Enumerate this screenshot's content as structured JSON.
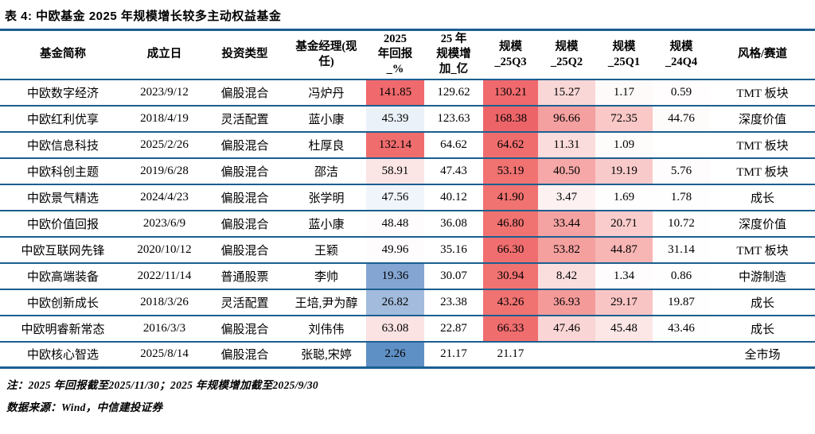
{
  "title": "表 4: 中欧基金 2025 年规模增长较多主动权益基金",
  "colors": {
    "rule_line": "#1B5F90",
    "heat_red_max": "#F0696C",
    "heat_blue_max": "#5E90C5",
    "background": "#FFFFFF"
  },
  "table": {
    "columns": [
      {
        "id": "fund-name",
        "label": "基金简称"
      },
      {
        "id": "inception-date",
        "label": "成立日"
      },
      {
        "id": "investment-type",
        "label": "投资类型"
      },
      {
        "id": "fund-manager",
        "label": "基金经理(现\n任)"
      },
      {
        "id": "return-2025-pct",
        "label": "2025\n年回报\n_%"
      },
      {
        "id": "scale-increase-25",
        "label": "25 年\n规模增\n加_亿"
      },
      {
        "id": "scale-25q3",
        "label": "规模\n_25Q3"
      },
      {
        "id": "scale-25q2",
        "label": "规模\n_25Q2"
      },
      {
        "id": "scale-25q1",
        "label": "规模\n_25Q1"
      },
      {
        "id": "scale-24q4",
        "label": "规模\n_24Q4"
      },
      {
        "id": "style-track",
        "label": "风格/赛道"
      }
    ],
    "rows": [
      {
        "cells": [
          {
            "t": "中欧数字经济"
          },
          {
            "t": "2023/9/12"
          },
          {
            "t": "偏股混合"
          },
          {
            "t": "冯炉丹"
          },
          {
            "t": "141.85",
            "bg": "#F0696C"
          },
          {
            "t": "129.62"
          },
          {
            "t": "130.21",
            "bg": "#F0696C"
          },
          {
            "t": "15.27",
            "bg": "#FAD7D7"
          },
          {
            "t": "1.17",
            "bg": "#FEFAFA"
          },
          {
            "t": "0.59",
            "bg": "#FFFDFD"
          },
          {
            "t": "TMT 板块"
          }
        ]
      },
      {
        "cells": [
          {
            "t": "中欧红利优享"
          },
          {
            "t": "2018/4/19"
          },
          {
            "t": "灵活配置"
          },
          {
            "t": "蓝小康"
          },
          {
            "t": "45.39",
            "bg": "#EBF1F9"
          },
          {
            "t": "123.63"
          },
          {
            "t": "168.38",
            "bg": "#ED6468"
          },
          {
            "t": "96.66",
            "bg": "#F5A0A0"
          },
          {
            "t": "72.35",
            "bg": "#F9C8C7"
          },
          {
            "t": "44.76",
            "bg": "#FEFBFB"
          },
          {
            "t": "深度价值"
          }
        ]
      },
      {
        "cells": [
          {
            "t": "中欧信息科技"
          },
          {
            "t": "2025/2/26"
          },
          {
            "t": "偏股混合"
          },
          {
            "t": "杜厚良"
          },
          {
            "t": "132.14",
            "bg": "#F06D6E"
          },
          {
            "t": "64.62"
          },
          {
            "t": "64.62",
            "bg": "#F06D6E"
          },
          {
            "t": "11.31",
            "bg": "#FBDCDC"
          },
          {
            "t": "1.09",
            "bg": "#FEFBFB"
          },
          {
            "t": ""
          },
          {
            "t": "TMT 板块"
          }
        ]
      },
      {
        "cells": [
          {
            "t": "中欧科创主题"
          },
          {
            "t": "2019/6/28"
          },
          {
            "t": "偏股混合"
          },
          {
            "t": "邵洁"
          },
          {
            "t": "58.91",
            "bg": "#FBE5E5"
          },
          {
            "t": "47.43"
          },
          {
            "t": "53.19",
            "bg": "#F07271"
          },
          {
            "t": "40.50",
            "bg": "#F5A8A7"
          },
          {
            "t": "19.19",
            "bg": "#F9CACA"
          },
          {
            "t": "5.76",
            "bg": "#FEFCFC"
          },
          {
            "t": "TMT 板块"
          }
        ]
      },
      {
        "cells": [
          {
            "t": "中欧景气精选"
          },
          {
            "t": "2024/4/23"
          },
          {
            "t": "偏股混合"
          },
          {
            "t": "张学明"
          },
          {
            "t": "47.56",
            "bg": "#F0F4FB"
          },
          {
            "t": "40.12"
          },
          {
            "t": "41.90",
            "bg": "#F07271"
          },
          {
            "t": "3.47",
            "bg": "#FDF1F1"
          },
          {
            "t": "1.69",
            "bg": "#FFFEFE"
          },
          {
            "t": "1.78",
            "bg": "#FFFEFE"
          },
          {
            "t": "成长"
          }
        ]
      },
      {
        "cells": [
          {
            "t": "中欧价值回报"
          },
          {
            "t": "2023/6/9"
          },
          {
            "t": "偏股混合"
          },
          {
            "t": "蓝小康"
          },
          {
            "t": "48.48",
            "bg": "#FEFCFC"
          },
          {
            "t": "36.08"
          },
          {
            "t": "46.80",
            "bg": "#F07271"
          },
          {
            "t": "33.44",
            "bg": "#F4A3A2"
          },
          {
            "t": "20.71",
            "bg": "#FACCCC"
          },
          {
            "t": "10.72",
            "bg": "#FFFEFE"
          },
          {
            "t": "深度价值"
          }
        ]
      },
      {
        "cells": [
          {
            "t": "中欧互联网先锋"
          },
          {
            "t": "2020/10/12"
          },
          {
            "t": "偏股混合"
          },
          {
            "t": "王颖"
          },
          {
            "t": "49.96",
            "bg": "#FEFCFC"
          },
          {
            "t": "35.16"
          },
          {
            "t": "66.30",
            "bg": "#F06E6F"
          },
          {
            "t": "53.82",
            "bg": "#F4A09F"
          },
          {
            "t": "44.87",
            "bg": "#F7B5B4"
          },
          {
            "t": "31.14",
            "bg": "#FFFEFE"
          },
          {
            "t": "TMT 板块"
          }
        ]
      },
      {
        "cells": [
          {
            "t": "中欧高端装备"
          },
          {
            "t": "2022/11/14"
          },
          {
            "t": "普通股票"
          },
          {
            "t": "李帅"
          },
          {
            "t": "19.36",
            "bg": "#84A5D2"
          },
          {
            "t": "30.07"
          },
          {
            "t": "30.94",
            "bg": "#F07271"
          },
          {
            "t": "8.42",
            "bg": "#FADEDE"
          },
          {
            "t": "1.34",
            "bg": "#FEFCFC"
          },
          {
            "t": "0.86",
            "bg": "#FFFEFE"
          },
          {
            "t": "中游制造"
          }
        ]
      },
      {
        "cells": [
          {
            "t": "中欧创新成长"
          },
          {
            "t": "2018/3/26"
          },
          {
            "t": "灵活配置"
          },
          {
            "t": "王培,尹为醇"
          },
          {
            "t": "26.82",
            "bg": "#A3BCDD"
          },
          {
            "t": "23.38"
          },
          {
            "t": "43.26",
            "bg": "#F07271"
          },
          {
            "t": "36.93",
            "bg": "#F49B9A"
          },
          {
            "t": "29.17",
            "bg": "#F9C5C4"
          },
          {
            "t": "19.87",
            "bg": "#FFFEFE"
          },
          {
            "t": "成长"
          }
        ]
      },
      {
        "cells": [
          {
            "t": "中欧明睿新常态"
          },
          {
            "t": "2016/3/3"
          },
          {
            "t": "偏股混合"
          },
          {
            "t": "刘伟伟"
          },
          {
            "t": "63.08",
            "bg": "#FBE2E3"
          },
          {
            "t": "22.87"
          },
          {
            "t": "66.33",
            "bg": "#F06D6E"
          },
          {
            "t": "47.46",
            "bg": "#FAD5D5"
          },
          {
            "t": "45.48",
            "bg": "#FCE6E6"
          },
          {
            "t": "43.46",
            "bg": "#FFFEFE"
          },
          {
            "t": "成长"
          }
        ]
      },
      {
        "cells": [
          {
            "t": "中欧核心智选"
          },
          {
            "t": "2025/8/14"
          },
          {
            "t": "偏股混合"
          },
          {
            "t": "张聪,宋婷"
          },
          {
            "t": "2.26",
            "bg": "#5E90C5"
          },
          {
            "t": "21.17"
          },
          {
            "t": "21.17"
          },
          {
            "t": ""
          },
          {
            "t": ""
          },
          {
            "t": ""
          },
          {
            "t": "全市场"
          }
        ]
      }
    ]
  },
  "notes": {
    "line1": "注：2025 年回报截至2025/11/30；2025 年规模增加截至2025/9/30",
    "line2": "数据来源：Wind，中信建投证券"
  }
}
